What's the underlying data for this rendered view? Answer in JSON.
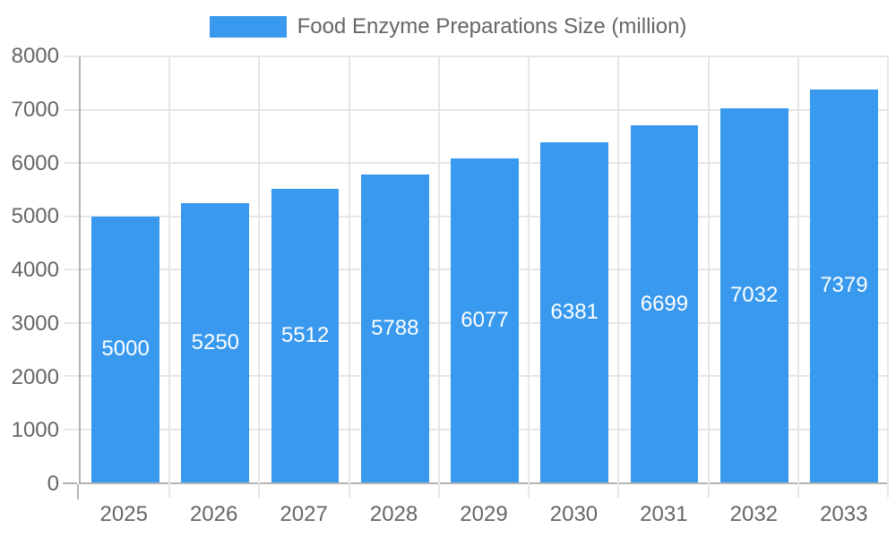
{
  "chart_data": {
    "type": "bar",
    "title": "Food Enzyme Preparations Size (million)",
    "legend": {
      "position": "top",
      "entries": [
        {
          "label": "Food Enzyme Preparations Size (million)",
          "swatch_color": "#3899ee"
        }
      ]
    },
    "categories": [
      "2025",
      "2026",
      "2027",
      "2028",
      "2029",
      "2030",
      "2031",
      "2032",
      "2033"
    ],
    "series": [
      {
        "name": "Food Enzyme Preparations Size (million)",
        "values": [
          5000,
          5250,
          5512,
          5788,
          6077,
          6381,
          6699,
          7032,
          7379
        ]
      }
    ],
    "bar_value_labels": [
      "5000",
      "5250",
      "5512",
      "5788",
      "6077",
      "6381",
      "6699",
      "7032",
      "7379"
    ],
    "xlabel": "",
    "ylabel": "",
    "ylim": [
      0,
      8000
    ],
    "ytick_step": 1000,
    "ytick_labels": [
      "0",
      "1000",
      "2000",
      "3000",
      "4000",
      "5000",
      "6000",
      "7000",
      "8000"
    ],
    "grid": true,
    "colors": {
      "bar": "#3899ee",
      "bar_label": "#ffffff",
      "axis_text": "#666666",
      "gridline": "#e6e6e6",
      "axis_line": "#b3b3b3",
      "background": "#ffffff"
    }
  }
}
